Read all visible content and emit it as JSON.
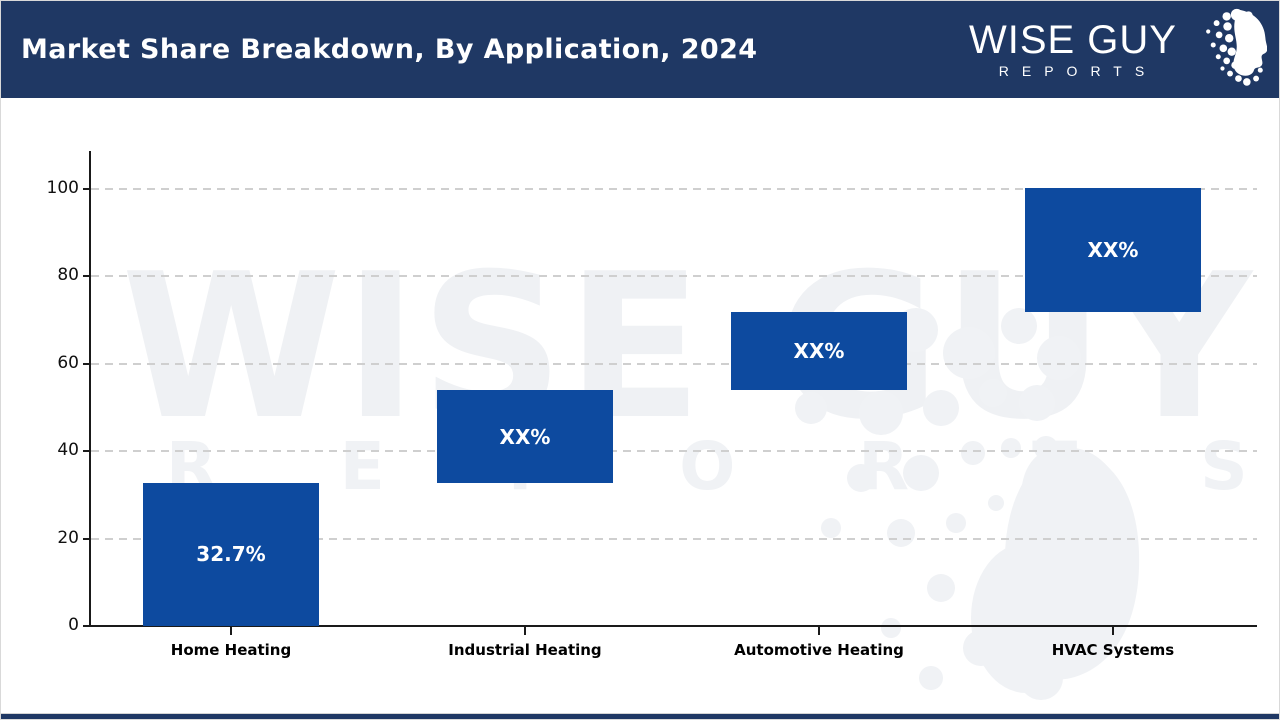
{
  "header": {
    "title": "Market Share Breakdown, By Application, 2024",
    "logo": {
      "line1": "WISE GUY",
      "line2": "REPORTS"
    },
    "bg_color": "#1f3864"
  },
  "watermark": {
    "line1": "WISE GUY",
    "line2": "R E P O R T S"
  },
  "chart_data": {
    "type": "bar",
    "subtype": "waterfall",
    "title": "Market Share Breakdown, By Application, 2024",
    "categories": [
      "Home Heating",
      "Industrial Heating",
      "Automotive Heating",
      "HVAC Systems"
    ],
    "values": [
      32.7,
      21.2,
      17.9,
      28.3
    ],
    "cumulative": true,
    "bar_labels": [
      "32.7%",
      "XX%",
      "XX%",
      "XX%"
    ],
    "yticks": [
      0,
      20,
      40,
      60,
      80,
      100
    ],
    "ylim": [
      0,
      107
    ],
    "xlabel": "",
    "ylabel": "",
    "grid": "horizontal-dashed",
    "legend": "none",
    "bar_color": "#0d4a9f",
    "axis_color": "#1a1a1a",
    "grid_color": "#cfcfcf"
  }
}
